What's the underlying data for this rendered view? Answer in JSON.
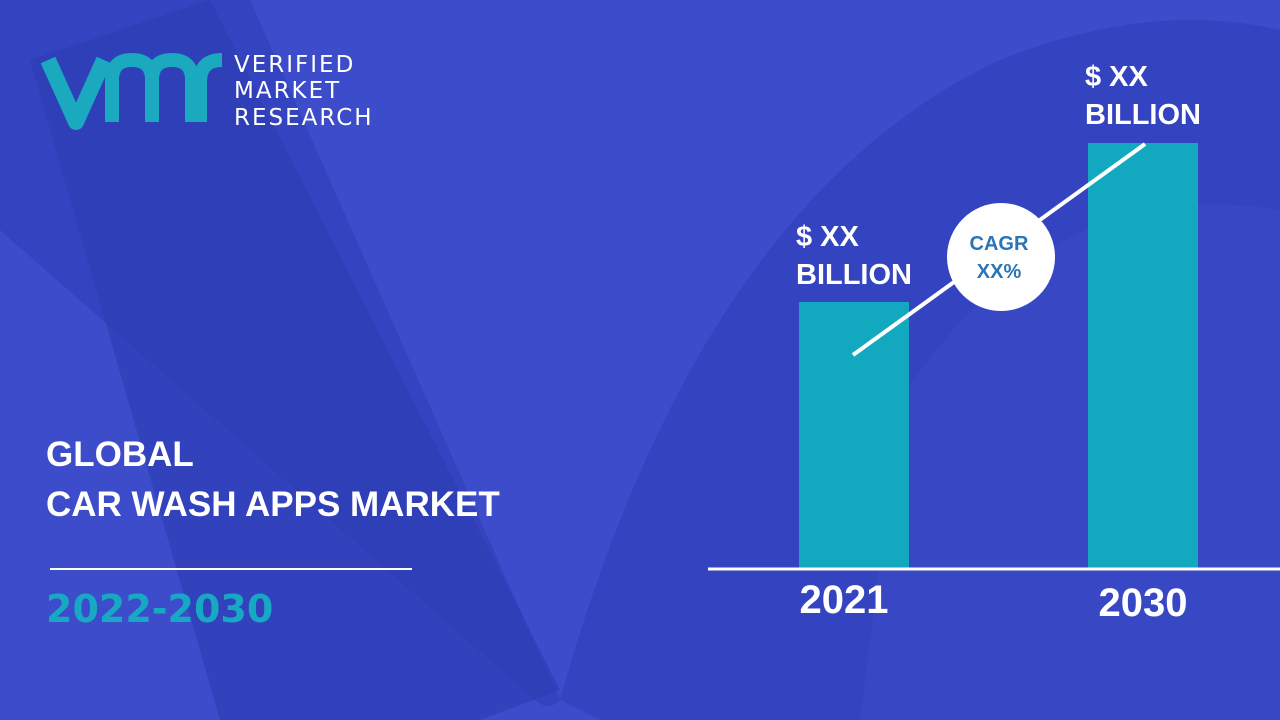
{
  "logo": {
    "lines": [
      "VERIFIED",
      "MARKET",
      "RESEARCH"
    ]
  },
  "title": {
    "lines": [
      "GLOBAL",
      "CAR WASH APPS MARKET"
    ]
  },
  "period": "2022-2030",
  "bars": [
    {
      "label_lines": [
        "$ XX",
        "BILLION"
      ],
      "year": "2021"
    },
    {
      "label_lines": [
        "$ XX",
        "BILLION"
      ],
      "year": "2030"
    }
  ],
  "cagr": {
    "lines": [
      "CAGR",
      "XX%"
    ]
  }
}
